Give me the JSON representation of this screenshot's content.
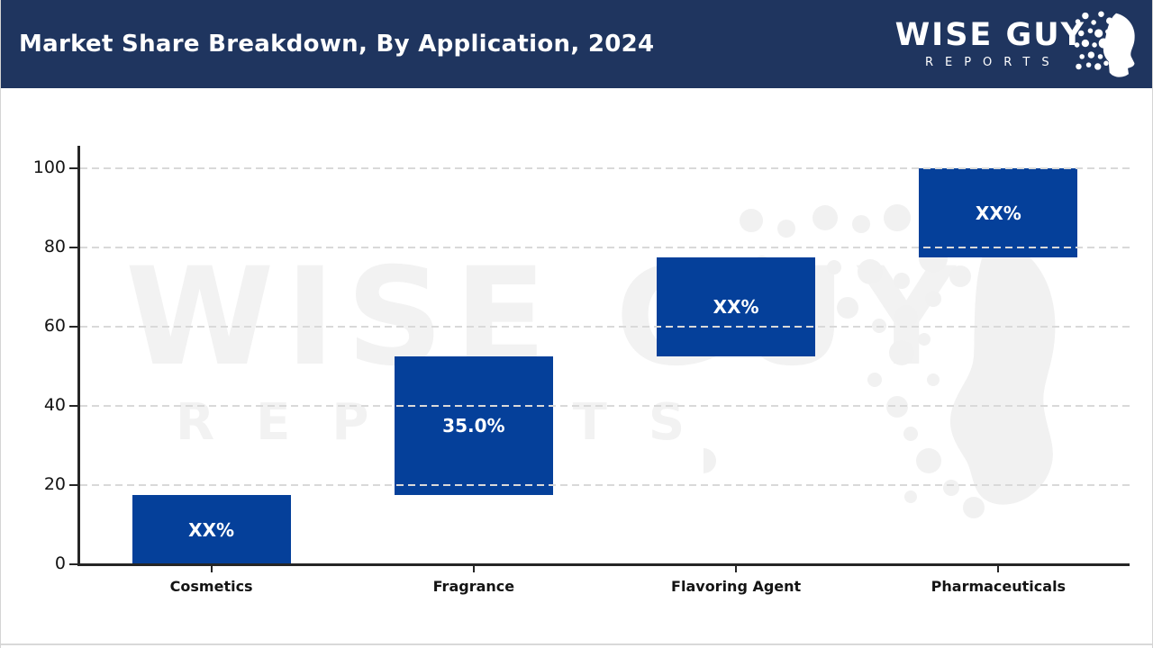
{
  "header": {
    "title": "Market Share Breakdown, By Application, 2024",
    "bg_color": "#1f355f",
    "brand_name": "WISE GUY",
    "brand_sub": "REPORTS"
  },
  "watermark": {
    "line1": "WISE GUY",
    "line2": "REPORTS"
  },
  "chart_data": {
    "type": "bar",
    "subtype": "waterfall-floating-bars",
    "title": "Market Share Breakdown, By Application, 2024",
    "categories": [
      "Cosmetics",
      "Fragrance",
      "Flavoring Agent",
      "Pharmaceuticals"
    ],
    "series": [
      {
        "name": "Market share (%)",
        "segments": [
          {
            "category": "Cosmetics",
            "start": 0,
            "end": 17.5,
            "label": "XX%"
          },
          {
            "category": "Fragrance",
            "start": 17.5,
            "end": 52.5,
            "label": "35.0%"
          },
          {
            "category": "Flavoring Agent",
            "start": 52.5,
            "end": 77.5,
            "label": "XX%"
          },
          {
            "category": "Pharmaceuticals",
            "start": 77.5,
            "end": 100,
            "label": "XX%"
          }
        ]
      }
    ],
    "xlabel": "",
    "ylabel": "",
    "ylim": [
      0,
      100
    ],
    "yticks": [
      0,
      20,
      40,
      60,
      80,
      100
    ],
    "grid": "horizontal-dashed",
    "legend": "none",
    "bar_color": "#05409a",
    "bar_label_color": "#ffffff",
    "axis_color": "#262626",
    "grid_color": "#d9d9d9"
  }
}
